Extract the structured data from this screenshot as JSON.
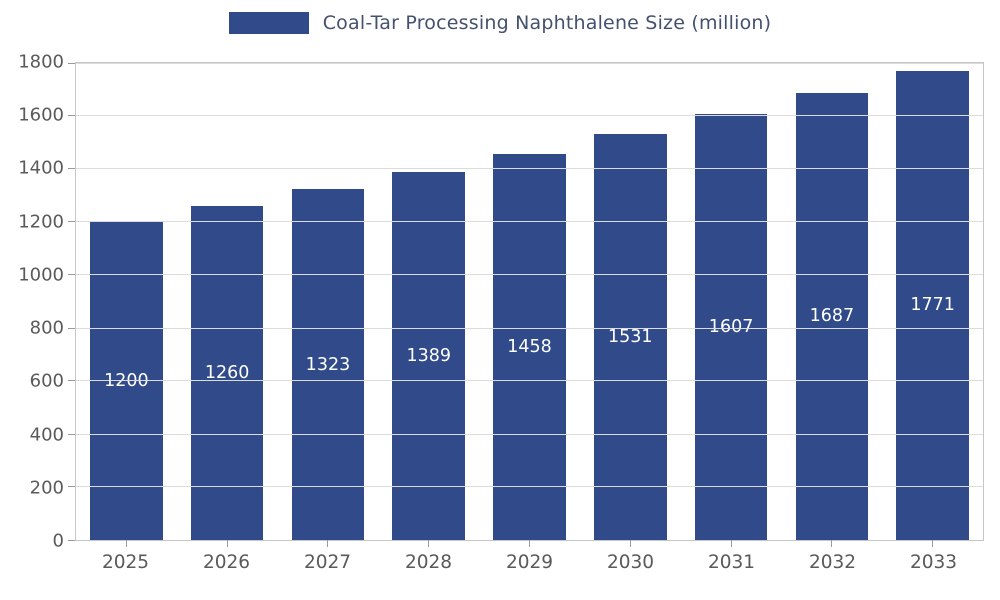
{
  "chart_data": {
    "type": "bar",
    "title": "Coal-Tar Processing Naphthalene Size (million)",
    "categories": [
      "2025",
      "2026",
      "2027",
      "2028",
      "2029",
      "2030",
      "2031",
      "2032",
      "2033"
    ],
    "values": [
      1200,
      1260,
      1323,
      1389,
      1458,
      1531,
      1607,
      1687,
      1771
    ],
    "value_labels": [
      "1200",
      "1260",
      "1323",
      "1389",
      "1458",
      "1531",
      "1607",
      "1687",
      "1771"
    ],
    "xlabel": "",
    "ylabel": "",
    "ylim": [
      0,
      1800
    ],
    "ytick_step": 200,
    "ytick_labels": [
      "0",
      "200",
      "400",
      "600",
      "800",
      "1000",
      "1200",
      "1400",
      "1600",
      "1800"
    ],
    "grid": true,
    "legend_position": "top",
    "colors": {
      "bar_fill": "#304a8a",
      "bar_value_text": "#ffffff",
      "legend_text": "#44516e",
      "axis_tick_text": "#5a5a5a",
      "gridline": "#dcdcdc",
      "plot_border": "#c6c6c6",
      "background": "#ffffff"
    }
  }
}
